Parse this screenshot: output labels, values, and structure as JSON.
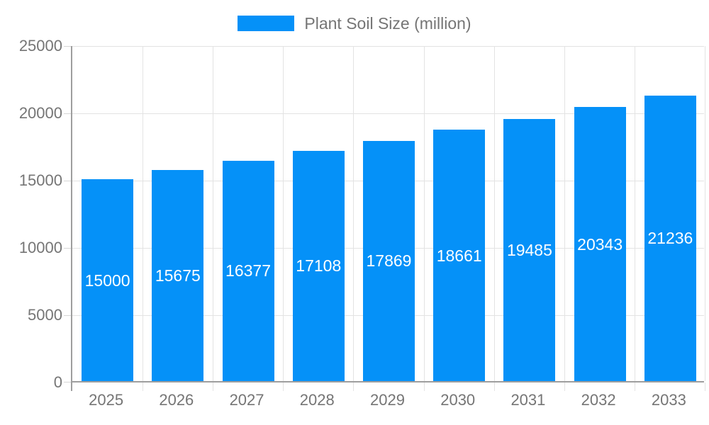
{
  "legend": {
    "label": "Plant Soil Size (million)"
  },
  "colors": {
    "bar": "#0591f8",
    "axis_line": "#9e9e9e",
    "grid_line": "#e3e3e3",
    "tick_line": "#d6d6d6",
    "axis_text": "#757575",
    "bar_label_text": "#ffffff",
    "background": "#ffffff"
  },
  "chart_data": {
    "type": "bar",
    "title": "Plant Soil Size (million)",
    "series_name": "Plant Soil Size (million)",
    "categories": [
      "2025",
      "2026",
      "2027",
      "2028",
      "2029",
      "2030",
      "2031",
      "2032",
      "2033"
    ],
    "values": [
      15000,
      15675,
      16377,
      17108,
      17869,
      18661,
      19485,
      20343,
      21236
    ],
    "xlabel": "",
    "ylabel": "",
    "ylim": [
      0,
      25000
    ],
    "yticks": [
      0,
      5000,
      10000,
      15000,
      20000,
      25000
    ],
    "grid": true,
    "legend_position": "top-center",
    "bar_value_labels": "inside-center-white"
  }
}
